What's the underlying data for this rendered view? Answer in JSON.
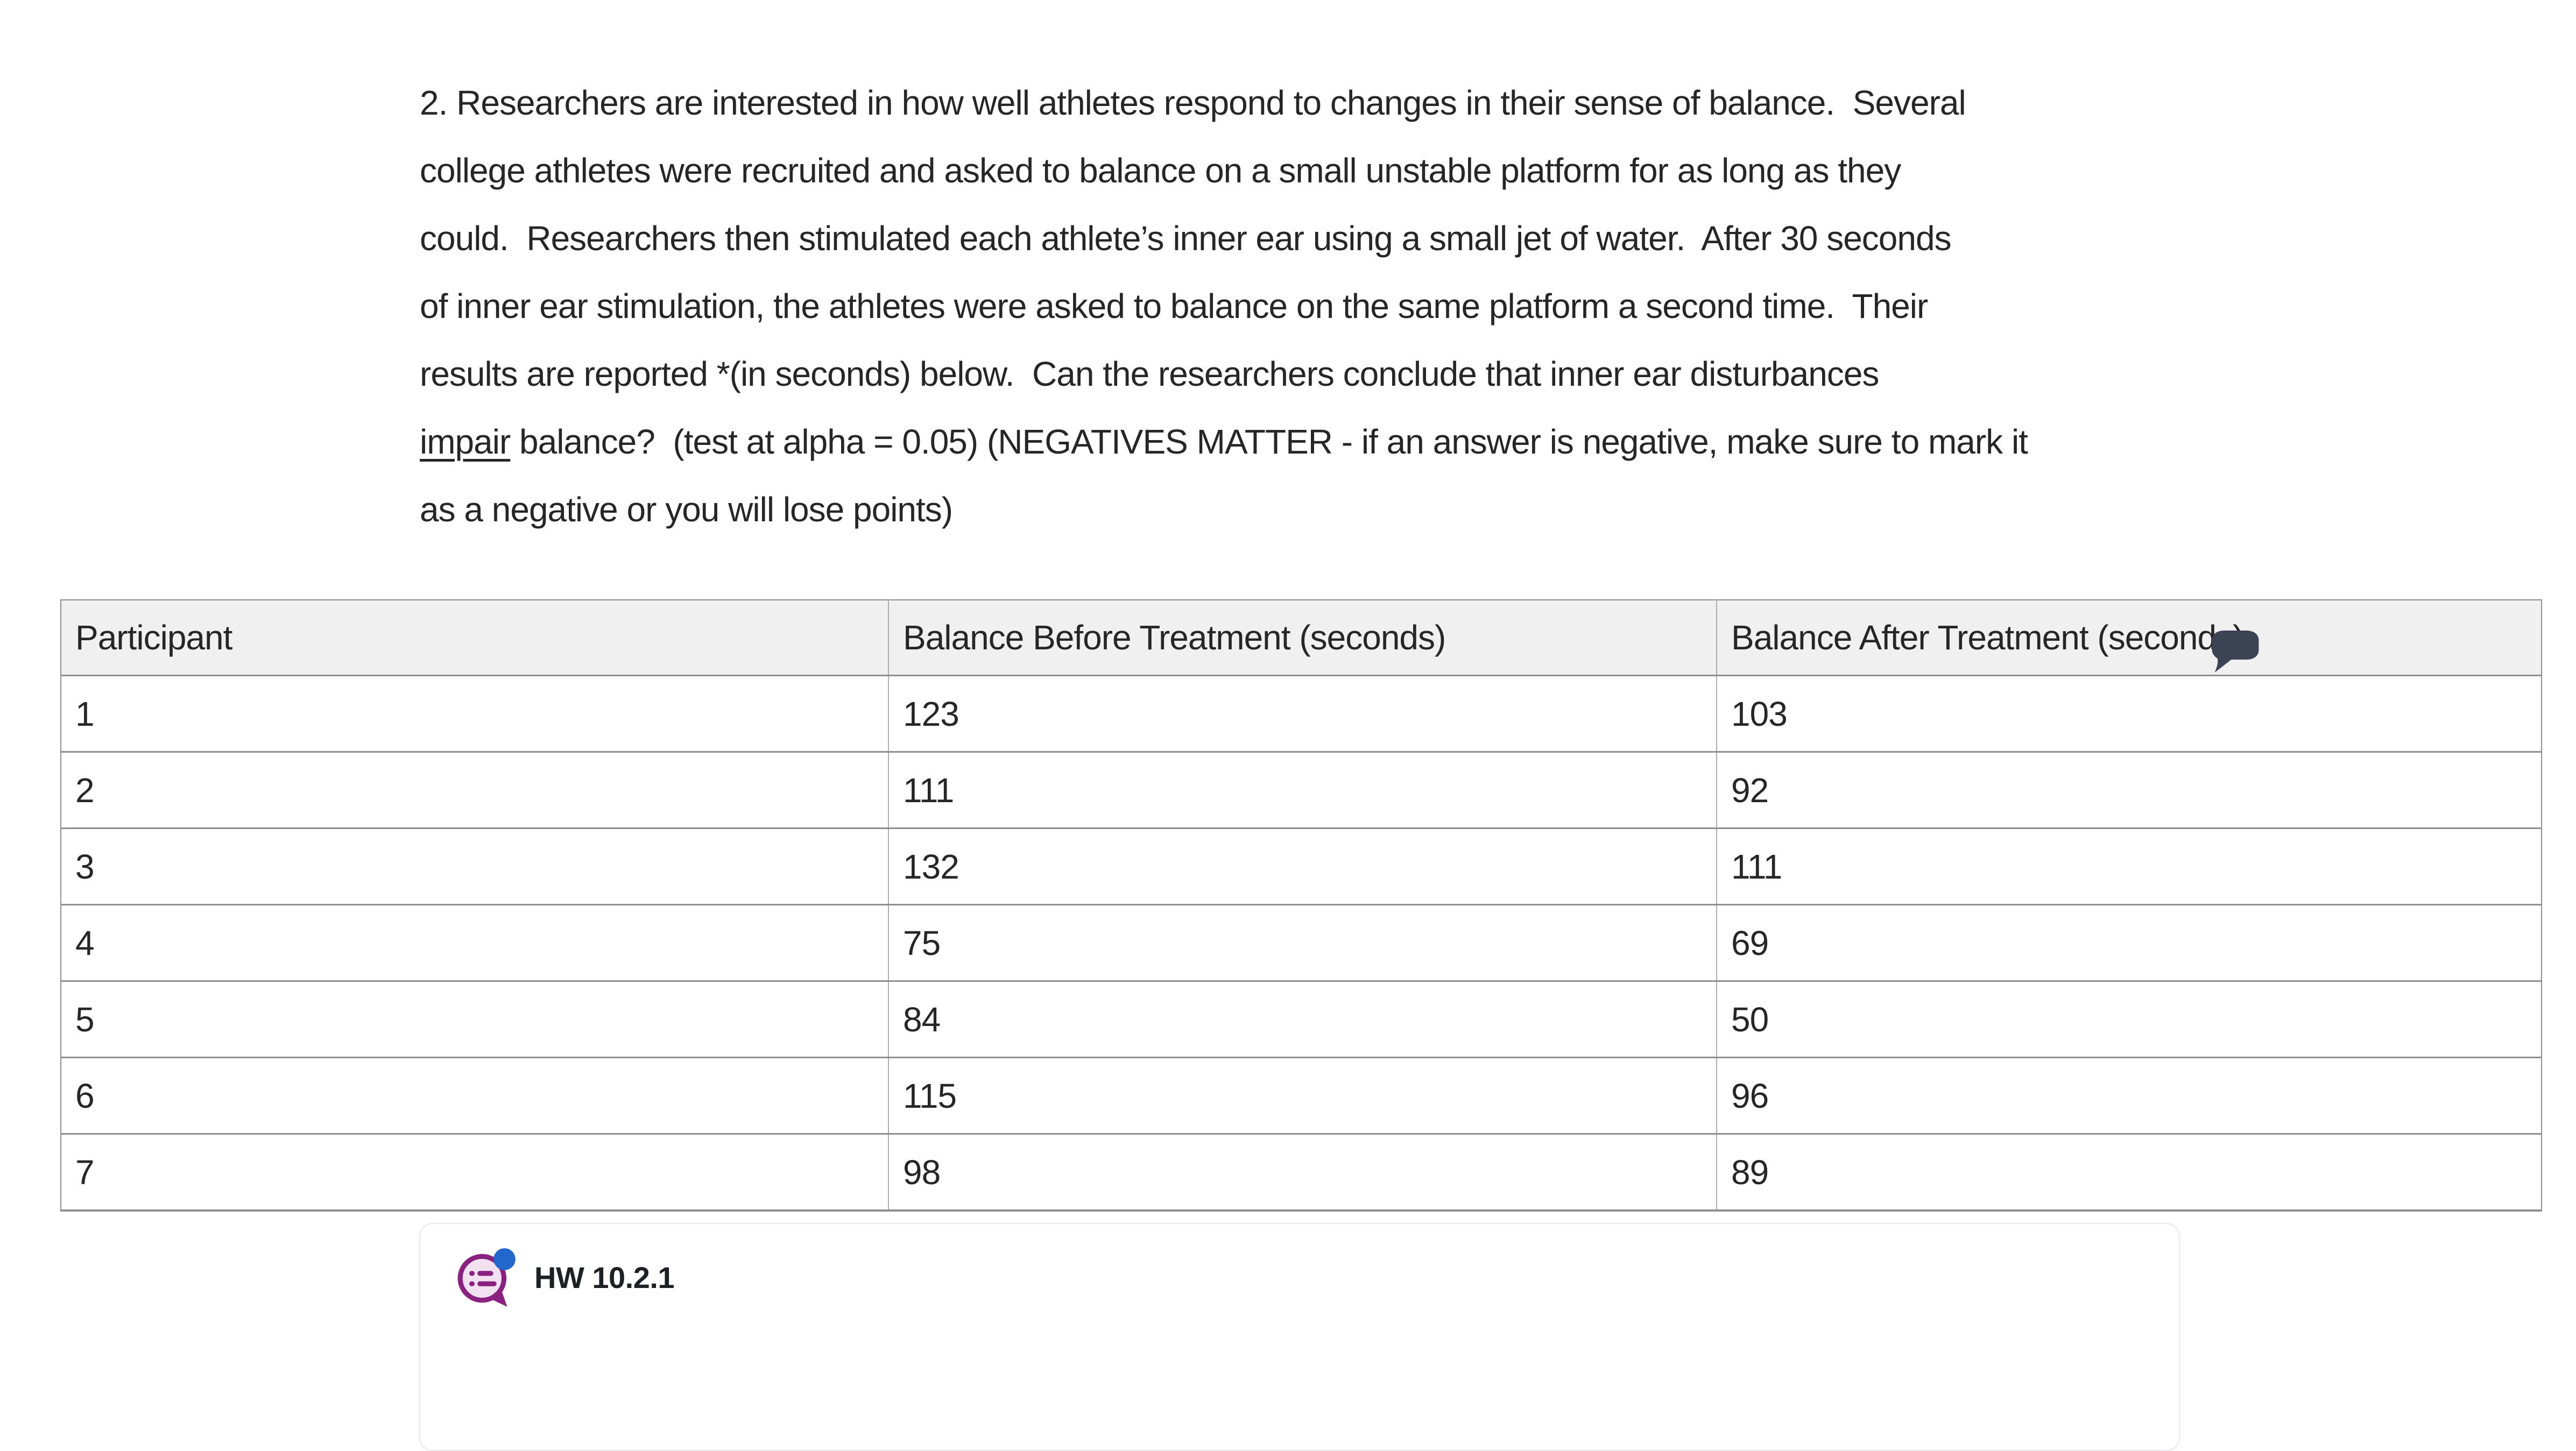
{
  "question": {
    "lines": [
      {
        "segments": [
          {
            "text": "2. Researchers are interested in how well athletes respond to changes in their sense of balance.  Several",
            "underline": false
          }
        ]
      },
      {
        "segments": [
          {
            "text": "college athletes were recruited and asked to balance on a small unstable platform for as long as they",
            "underline": false
          }
        ]
      },
      {
        "segments": [
          {
            "text": "could.  Researchers then stimulated each athlete’s inner ear using a small jet of water.  After 30 seconds",
            "underline": false
          }
        ]
      },
      {
        "segments": [
          {
            "text": "of inner ear stimulation, the athletes were asked to balance on the same platform a second time.  Their",
            "underline": false
          }
        ]
      },
      {
        "segments": [
          {
            "text": "results are reported *(in seconds) below.  Can the researchers conclude that inner ear disturbances",
            "underline": false
          }
        ]
      },
      {
        "segments": [
          {
            "text": "impair",
            "underline": true
          },
          {
            "text": " balance?  (test at alpha = 0.05) (NEGATIVES MATTER - if an answer is negative, make sure to mark it",
            "underline": false
          }
        ]
      },
      {
        "segments": [
          {
            "text": "as a negative or you will lose points)",
            "underline": false
          }
        ]
      }
    ]
  },
  "table": {
    "headers": [
      "Participant",
      "Balance Before Treatment (seconds)",
      "Balance After Treatment (seconds)"
    ],
    "rows": [
      [
        "1",
        "123",
        "103"
      ],
      [
        "2",
        "111",
        "92"
      ],
      [
        "3",
        "132",
        "111"
      ],
      [
        "4",
        "75",
        "69"
      ],
      [
        "5",
        "84",
        "50"
      ],
      [
        "6",
        "115",
        "96"
      ],
      [
        "7",
        "98",
        "89"
      ]
    ]
  },
  "assignment_card": {
    "title": "HW 10.2.1"
  },
  "colors": {
    "text": "#262626",
    "header_bg": "#f0f0f0",
    "border_dark": "#8f8f8f",
    "border_light": "#adadad",
    "cursor": "#3c4354",
    "icon_purple": "#8a2080",
    "icon_bubble_fill": "#f2e2f1",
    "icon_blue": "#2267cb",
    "card_border": "#e8e8ee"
  }
}
